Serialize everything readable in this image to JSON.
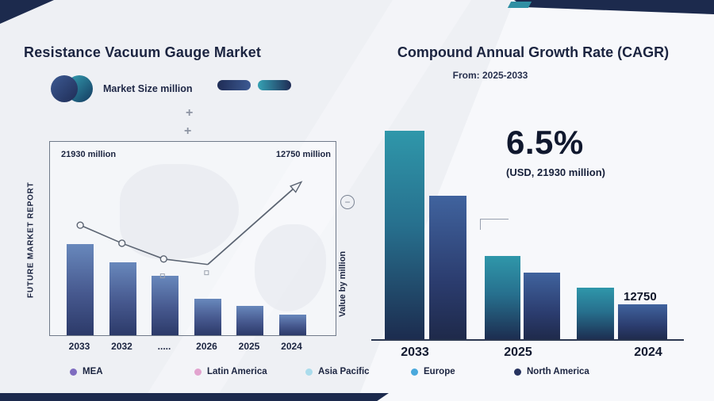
{
  "decor": {
    "plus": "+",
    "minus": "−"
  },
  "legend": {
    "items": [
      {
        "label": "MEA",
        "color": "#7e6cc0"
      },
      {
        "label": "Latin America",
        "color": "#e2a3cf"
      },
      {
        "label": "Asia Pacific",
        "color": "#aadcec"
      },
      {
        "label": "Europe",
        "color": "#49a8dc"
      },
      {
        "label": "North America",
        "color": "#27335f"
      }
    ]
  },
  "chart_data": [
    {
      "id": "market-size-trend",
      "type": "bar",
      "title": "Resistance Vacuum Gauge Market",
      "series_label": "Market Size million",
      "ylabel": "FUTURE MARKET REPORT",
      "unit": "million",
      "categories": [
        "2033",
        "2032",
        ".....",
        "2026",
        "2025",
        "2024"
      ],
      "values": [
        21930,
        19500,
        17800,
        14800,
        13800,
        12750
      ],
      "annotations": [
        "21930 million",
        "12750 million"
      ],
      "ylim": [
        10000,
        22000
      ],
      "legend_position": "top-left",
      "grid": false
    },
    {
      "id": "cagr-chart",
      "type": "bar",
      "title": "Compound Annual Growth Rate (CAGR)",
      "subtitle": "From: 2025-2033",
      "cagr": "6.5%",
      "cagr_note": "(USD, 21930 million)",
      "ylabel": "Value by million",
      "categories": [
        "2033",
        "2025",
        "2024"
      ],
      "series": [
        {
          "name": "series-1",
          "values": [
            21930,
            15300,
            13600
          ]
        },
        {
          "name": "series-2",
          "values": [
            18500,
            14400,
            12750
          ]
        }
      ],
      "annotation": "12750",
      "ylim": [
        10800,
        22000
      ],
      "grid": false
    }
  ]
}
